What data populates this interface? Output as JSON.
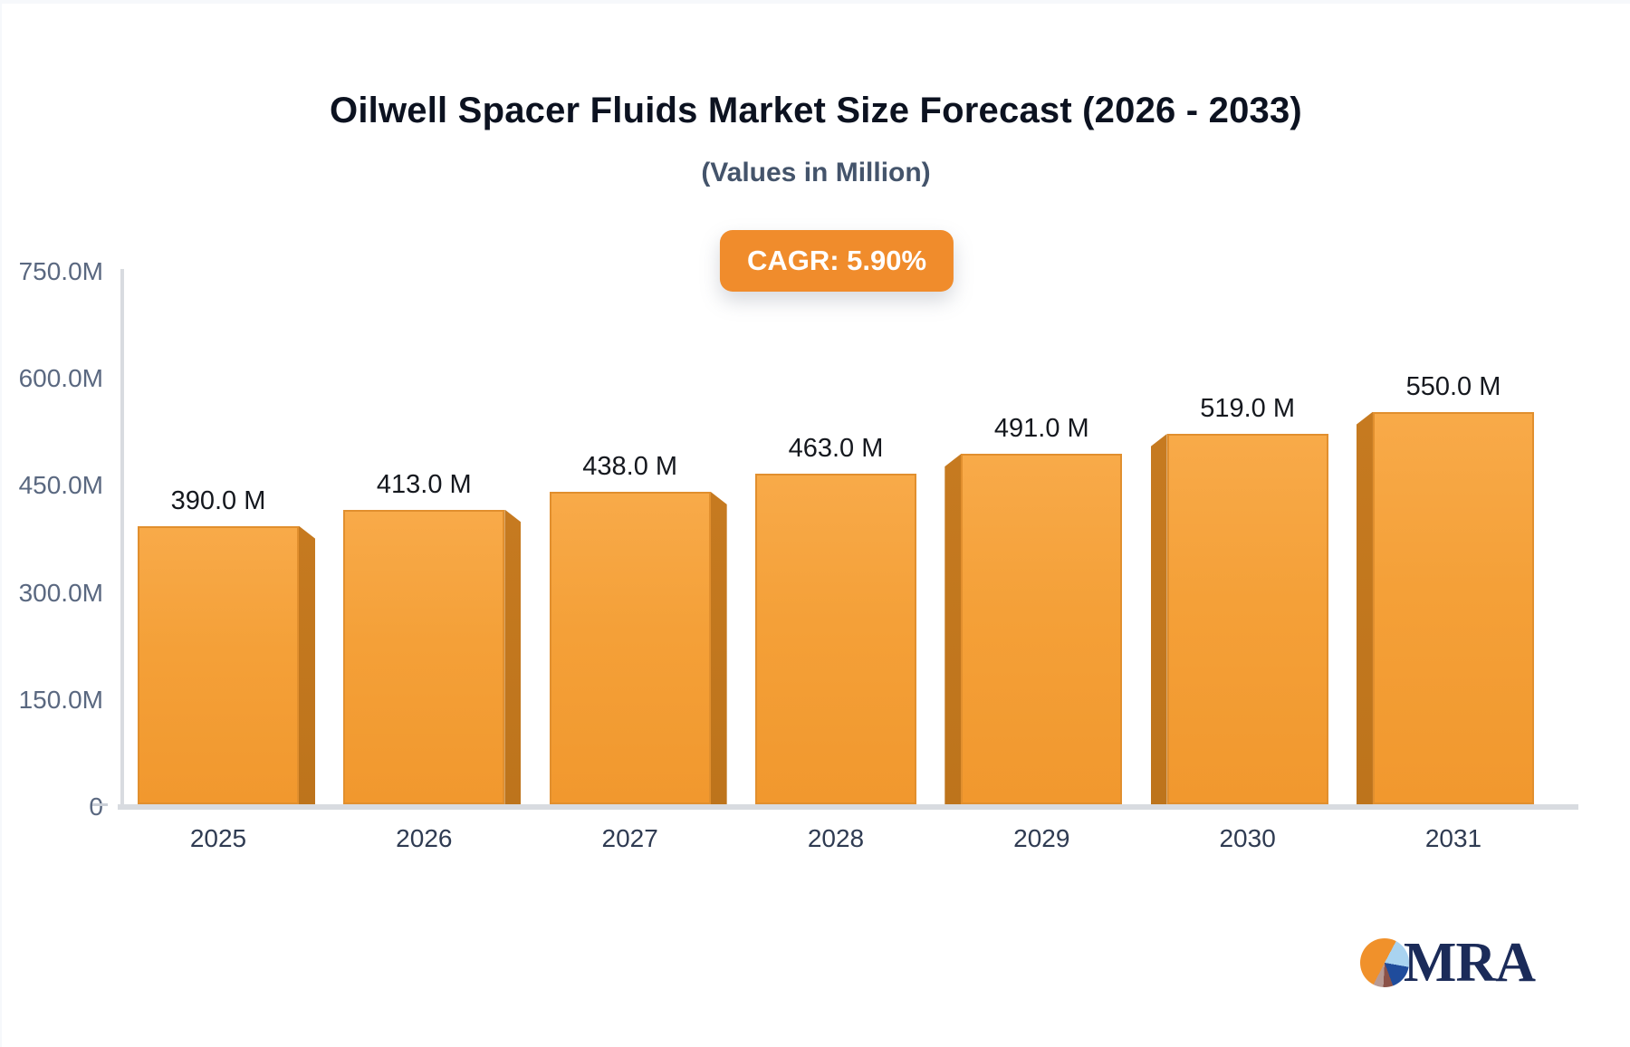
{
  "chart_data": {
    "type": "bar",
    "title": "Oilwell Spacer Fluids Market Size Forecast (2026 - 2033)",
    "subtitle": "(Values in Million)",
    "cagr_label": "CAGR: 5.90%",
    "categories": [
      "2025",
      "2026",
      "2027",
      "2028",
      "2029",
      "2030",
      "2031"
    ],
    "values": [
      390,
      413,
      438,
      463,
      491,
      519,
      550
    ],
    "value_labels": [
      "390.0 M",
      "413.0 M",
      "438.0 M",
      "463.0 M",
      "491.0 M",
      "519.0 M",
      "550.0 M"
    ],
    "y_ticks": [
      {
        "label": "750.0M",
        "value": 750
      },
      {
        "label": "600.0M",
        "value": 600
      },
      {
        "label": "450.0M",
        "value": 450
      },
      {
        "label": "300.0M",
        "value": 300
      },
      {
        "label": "150.0M",
        "value": 150
      },
      {
        "label": "0",
        "value": 0
      }
    ],
    "ylim": [
      0,
      750
    ],
    "xlabel": "",
    "ylabel": "",
    "grid": false,
    "legend": "none",
    "bar_style": "3d-perspective-toward-center"
  },
  "logo": {
    "text": "MRA"
  },
  "colors": {
    "frame": "#f6f8fb",
    "title": "#0c1220",
    "subtitle": "#44546b",
    "badge_bg": "#f08c2c",
    "badge_text": "#ffffff",
    "axis": "#d8dbe0",
    "tick": "#5a6880",
    "xlabel": "#2f3b52",
    "value_text": "#15181e",
    "bar_top": "#f8aa49",
    "bar_mid": "#f4a038",
    "bar_bot": "#f1982e",
    "bar_border": "#e18f2e",
    "side_top": "#c67a20",
    "side_bot": "#bd741c",
    "logo_navy": "#1b2b59",
    "logo_orange": "#f0912b",
    "logo_lightblue": "#a9d3f0",
    "logo_blue": "#1f4c9c",
    "logo_maroon": "#8b5148",
    "logo_rose": "#b89a94"
  }
}
